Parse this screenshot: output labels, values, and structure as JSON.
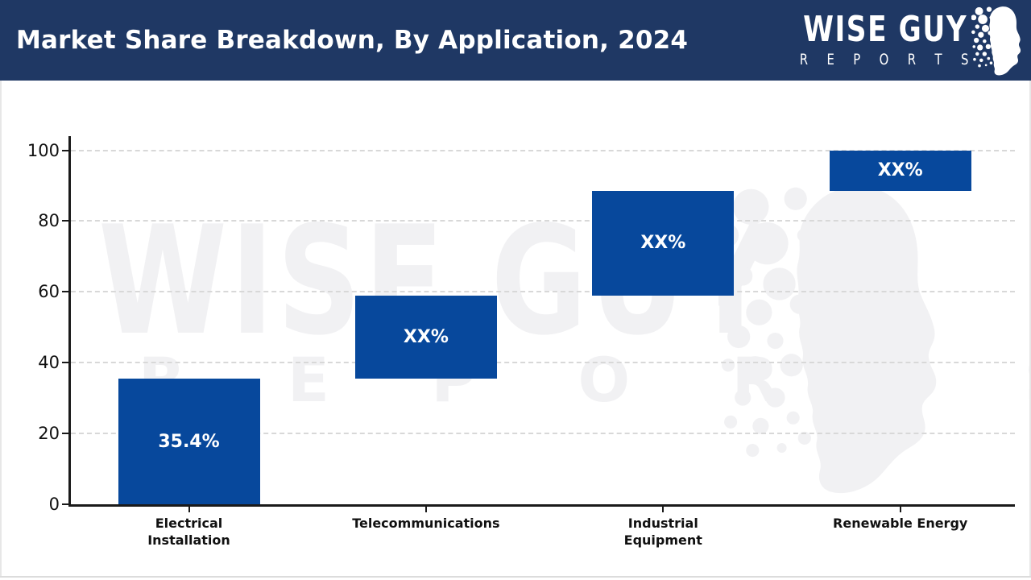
{
  "header": {
    "title": "Market Share Breakdown, By Application, 2024",
    "bg_color": "#1f3864",
    "logo": {
      "wordmark": "WISE GUY",
      "subtitle": "R E P O R T S"
    }
  },
  "watermark": {
    "wordmark": "WISE GUY",
    "subtitle": "R E P O R T S"
  },
  "chart_data": {
    "type": "bar",
    "subtype": "floating-breakdown-waterfall",
    "title": "Market Share Breakdown, By Application, 2024",
    "categories": [
      "Electrical Installation",
      "Telecommunications",
      "Industrial Equipment",
      "Renewable Energy"
    ],
    "category_label_lines": [
      [
        "Electrical",
        "Installation"
      ],
      [
        "Telecommunications"
      ],
      [
        "Industrial",
        "Equipment"
      ],
      [
        "Renewable Energy"
      ]
    ],
    "segments": [
      {
        "category": "Electrical Installation",
        "start": 0,
        "end": 35.4,
        "value_label": "35.4%"
      },
      {
        "category": "Telecommunications",
        "start": 35.4,
        "end": 59,
        "value_label": "XX%"
      },
      {
        "category": "Industrial Equipment",
        "start": 59,
        "end": 88.5,
        "value_label": "XX%"
      },
      {
        "category": "Renewable Energy",
        "start": 88.5,
        "end": 100,
        "value_label": "XX%"
      }
    ],
    "yticks": [
      0,
      20,
      40,
      60,
      80,
      100
    ],
    "ylim": [
      0,
      104
    ],
    "xlabel": "",
    "ylabel": "",
    "grid": "horizontal-dashed",
    "legend": "none",
    "colors": {
      "bar": "#07489c",
      "bar_label": "#ffffff",
      "axis": "#1a1a1a",
      "tick_label": "#111111",
      "gridline": "#d8d8d8",
      "watermark": "#f1f1f3"
    }
  }
}
